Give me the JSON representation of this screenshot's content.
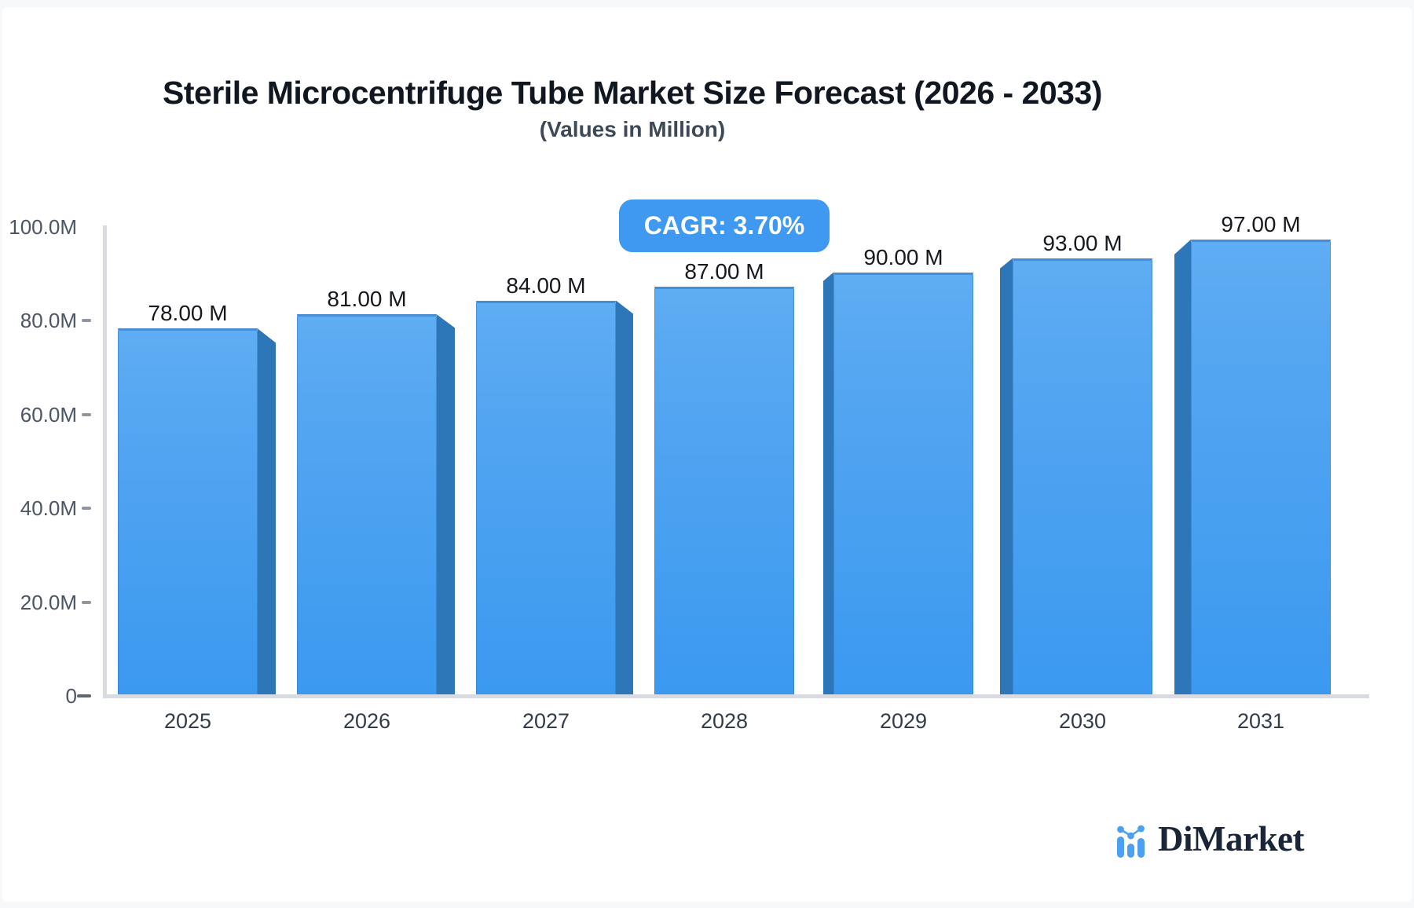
{
  "title": "Sterile Microcentrifuge Tube Market Size Forecast (2026 - 2033)",
  "subtitle": "(Values in Million)",
  "badge": {
    "label": "CAGR: 3.70%",
    "color": "#3f99f0"
  },
  "logo": {
    "text": "DiMarket",
    "icon": "mini-bar-chart-icon",
    "icon_color": "#4ba0f1",
    "text_color": "#1a2638"
  },
  "chart_data": {
    "type": "bar",
    "title": "Sterile Microcentrifuge Tube Market Size Forecast (2026 - 2033)",
    "subtitle": "(Values in Million)",
    "categories": [
      "2025",
      "2026",
      "2027",
      "2028",
      "2029",
      "2030",
      "2031"
    ],
    "values": [
      78,
      81,
      84,
      87,
      90,
      93,
      97
    ],
    "value_labels": [
      "78.00 M",
      "81.00 M",
      "84.00 M",
      "87.00 M",
      "90.00 M",
      "93.00 M",
      "97.00 M"
    ],
    "unit": "Million",
    "xlabel": "",
    "ylabel": "",
    "ylim": [
      0,
      100
    ],
    "grid": false,
    "legend": false,
    "y_ticks": [
      {
        "label": "100.0M",
        "value": 100
      },
      {
        "label": "80.0M",
        "value": 80
      },
      {
        "label": "60.0M",
        "value": 60
      },
      {
        "label": "40.0M",
        "value": 40
      },
      {
        "label": "20.0M",
        "value": 20
      },
      {
        "label": "0",
        "value": 0
      }
    ],
    "bar_color_top": "#5fadf3",
    "bar_color_bottom": "#3b99f0",
    "bar_side_color": "#2d76b7",
    "annotation": "CAGR: 3.70%"
  }
}
